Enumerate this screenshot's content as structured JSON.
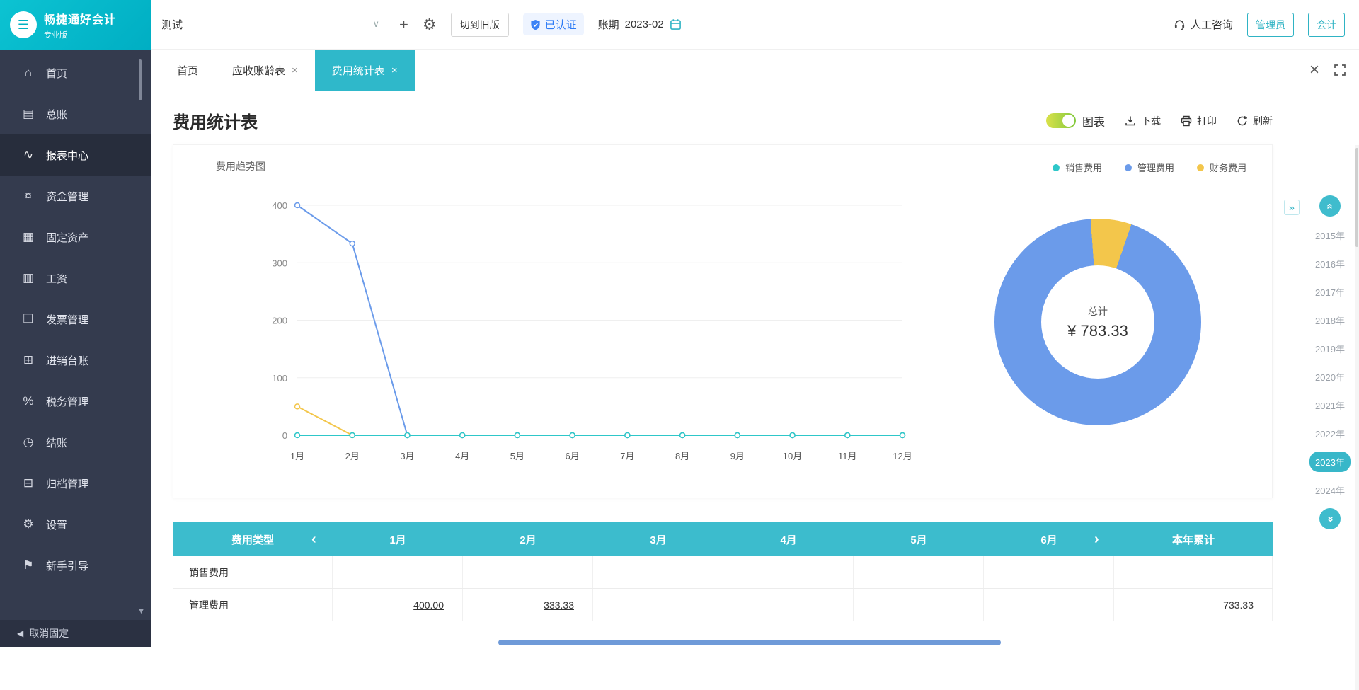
{
  "brand": {
    "name": "畅捷通好会计",
    "edition": "专业版"
  },
  "header": {
    "account_select": "测试",
    "switch_old": "切到旧版",
    "certified": "已认证",
    "period_label": "账期",
    "period_value": "2023-02",
    "support": "人工咨询",
    "role_admin": "管理员",
    "role_accounting": "会计"
  },
  "sidebar": {
    "items": [
      {
        "label": "首页",
        "icon": "home-icon",
        "active": false
      },
      {
        "label": "总账",
        "icon": "ledger-icon",
        "active": false
      },
      {
        "label": "报表中心",
        "icon": "report-icon",
        "active": true
      },
      {
        "label": "资金管理",
        "icon": "funds-icon",
        "active": false
      },
      {
        "label": "固定资产",
        "icon": "fixed-assets-icon",
        "active": false
      },
      {
        "label": "工资",
        "icon": "salary-icon",
        "active": false
      },
      {
        "label": "发票管理",
        "icon": "invoice-icon",
        "active": false
      },
      {
        "label": "进销台账",
        "icon": "inventory-icon",
        "active": false
      },
      {
        "label": "税务管理",
        "icon": "tax-icon",
        "active": false
      },
      {
        "label": "结账",
        "icon": "closing-icon",
        "active": false
      },
      {
        "label": "归档管理",
        "icon": "archive-icon",
        "active": false
      },
      {
        "label": "设置",
        "icon": "settings-icon",
        "active": false
      },
      {
        "label": "新手引导",
        "icon": "guide-icon",
        "active": false
      }
    ],
    "pin_label": "取消固定"
  },
  "tabs": [
    {
      "label": "首页",
      "closable": false,
      "active": false
    },
    {
      "label": "应收账龄表",
      "closable": true,
      "active": false
    },
    {
      "label": "费用统计表",
      "closable": true,
      "active": true
    }
  ],
  "page": {
    "title": "费用统计表",
    "toggle_label": "图表",
    "actions": [
      "下载",
      "打印",
      "刷新"
    ]
  },
  "chart_data": [
    {
      "type": "line",
      "title": "费用趋势图",
      "categories": [
        "1月",
        "2月",
        "3月",
        "4月",
        "5月",
        "6月",
        "7月",
        "8月",
        "9月",
        "10月",
        "11月",
        "12月"
      ],
      "series": [
        {
          "name": "销售费用",
          "color": "#2ec7c9",
          "values": [
            0,
            0,
            0,
            0,
            0,
            0,
            0,
            0,
            0,
            0,
            0,
            0
          ]
        },
        {
          "name": "管理费用",
          "color": "#6b9bea",
          "values": [
            400,
            333.33,
            0,
            0,
            0,
            0,
            0,
            0,
            0,
            0,
            0,
            0
          ]
        },
        {
          "name": "财务费用",
          "color": "#f3c64b",
          "values": [
            50,
            0,
            0,
            0,
            0,
            0,
            0,
            0,
            0,
            0,
            0,
            0
          ]
        }
      ],
      "ylim": [
        0,
        400
      ],
      "yticks": [
        0,
        100,
        200,
        300,
        400
      ],
      "grid": true,
      "legend_position": "top-right"
    },
    {
      "type": "pie",
      "center_label": "总计",
      "center_value": "¥ 783.33",
      "slices": [
        {
          "name": "财务费用",
          "value": 50,
          "color": "#f3c64b"
        },
        {
          "name": "管理费用",
          "value": 733.33,
          "color": "#6b9bea"
        },
        {
          "name": "销售费用",
          "value": 0,
          "color": "#2ec7c9"
        }
      ]
    }
  ],
  "table": {
    "columns": [
      "费用类型",
      "1月",
      "2月",
      "3月",
      "4月",
      "5月",
      "6月",
      "本年累计"
    ],
    "rows": [
      {
        "label": "销售费用",
        "cells": [
          "",
          "",
          "",
          "",
          "",
          "",
          ""
        ]
      },
      {
        "label": "管理费用",
        "cells": [
          "400.00",
          "333.33",
          "",
          "",
          "",
          "",
          "733.33"
        ]
      }
    ]
  },
  "year_panel": {
    "years": [
      "2015年",
      "2016年",
      "2017年",
      "2018年",
      "2019年",
      "2020年",
      "2021年",
      "2022年",
      "2023年",
      "2024年"
    ],
    "selected": "2023年"
  }
}
